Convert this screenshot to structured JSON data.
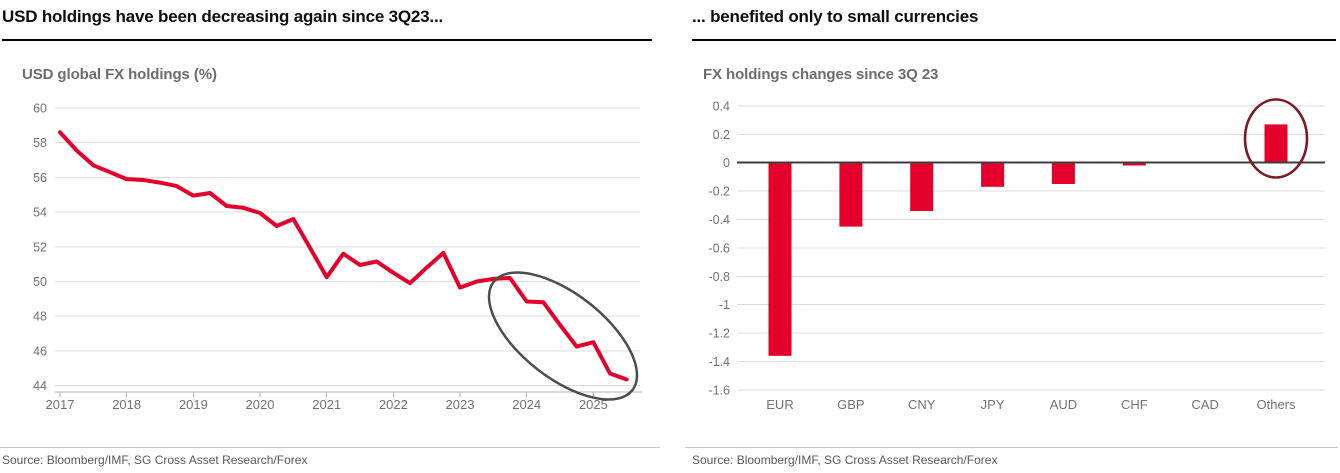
{
  "panels": {
    "left": {
      "header": "USD holdings have been decreasing again since 3Q23...",
      "subtitle": "USD global FX holdings (%)",
      "source": "Source: Bloomberg/IMF, SG Cross Asset Research/Forex"
    },
    "right": {
      "header": "... benefited only to small currencies",
      "subtitle": "FX holdings changes since 3Q 23",
      "source": "Source: Bloomberg/IMF, SG Cross Asset Research/Forex"
    }
  },
  "colors": {
    "accent_red": "#e4002b",
    "gridline": "#dcdcdc",
    "axis_line": "#b5b5b5",
    "zero_line": "#3d3d3d",
    "tick_label": "#737373",
    "left_annotation_ellipse": "#4d4d4d",
    "right_annotation_ellipse": "#7b1c24"
  },
  "chart_data": [
    {
      "type": "line",
      "title": "USD global FX holdings (%)",
      "x_frequency": "quarterly",
      "x_start": "2017Q1",
      "x_end": "2025Q3",
      "x_tick_labels": [
        "2017",
        "2018",
        "2019",
        "2020",
        "2021",
        "2022",
        "2023",
        "2024",
        "2025"
      ],
      "y_tick_labels": [
        "60",
        "58",
        "56",
        "54",
        "52",
        "50",
        "48",
        "46",
        "44"
      ],
      "ylim": [
        44,
        60
      ],
      "grid": "horizontal",
      "legend": "none",
      "series": [
        {
          "name": "USD share of global FX holdings (%)",
          "values": [
            58.6,
            57.55,
            56.7,
            56.3,
            55.9,
            55.85,
            55.7,
            55.5,
            54.95,
            55.1,
            54.35,
            54.25,
            53.95,
            53.2,
            53.6,
            51.95,
            50.25,
            51.6,
            50.95,
            51.15,
            50.5,
            49.9,
            50.8,
            51.65,
            49.65,
            50.0,
            50.15,
            50.2,
            48.85,
            48.8,
            47.5,
            46.25,
            46.5,
            44.7,
            44.35
          ]
        }
      ],
      "annotation": "gray ellipse circling the decline from 3Q23 to mid-2025"
    },
    {
      "type": "bar",
      "title": "FX holdings changes since 3Q 23",
      "categories": [
        "EUR",
        "GBP",
        "CNY",
        "JPY",
        "AUD",
        "CHF",
        "CAD",
        "Others"
      ],
      "values": [
        -1.36,
        -0.45,
        -0.34,
        -0.17,
        -0.15,
        -0.02,
        0.0,
        0.27
      ],
      "y_tick_labels": [
        "0.4",
        "0.2",
        "0",
        "-0.2",
        "-0.4",
        "-0.6",
        "-0.8",
        "-1",
        "-1.2",
        "-1.4",
        "-1.6"
      ],
      "y_tick_values": [
        0.4,
        0.2,
        0,
        -0.2,
        -0.4,
        -0.6,
        -0.8,
        -1,
        -1.2,
        -1.4,
        -1.6
      ],
      "ylim": [
        -1.6,
        0.4
      ],
      "grid": "horizontal",
      "legend": "none",
      "annotation": "dark red ellipse circling the positive Others bar"
    }
  ]
}
